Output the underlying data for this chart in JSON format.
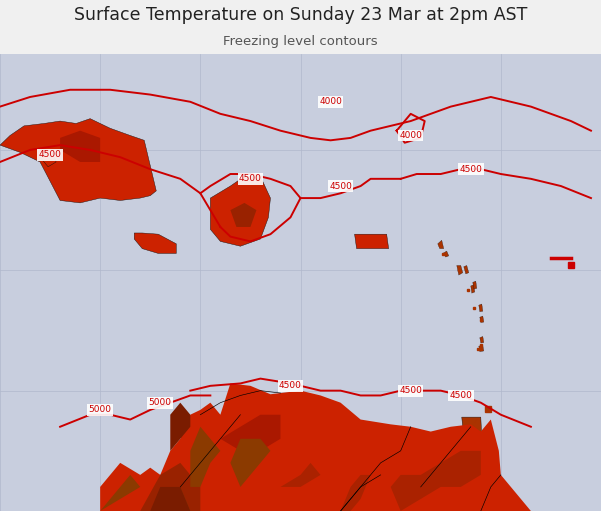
{
  "title": "Surface Temperature on Sunday 23 Mar at 2pm AST",
  "subtitle": "Freezing level contours",
  "title_fontsize": 12.5,
  "subtitle_fontsize": 9.5,
  "header_bg": "#f0f0f0",
  "ocean_color": "#c8cede",
  "grid_color": "#b0b8cc",
  "contour_color": "#cc0000",
  "contour_lw": 1.4,
  "figsize": [
    6.01,
    5.11
  ],
  "dpi": 100,
  "lon_min": -85,
  "lon_max": -55,
  "lat_min": 7,
  "lat_max": 26,
  "label_fontsize": 6.5
}
